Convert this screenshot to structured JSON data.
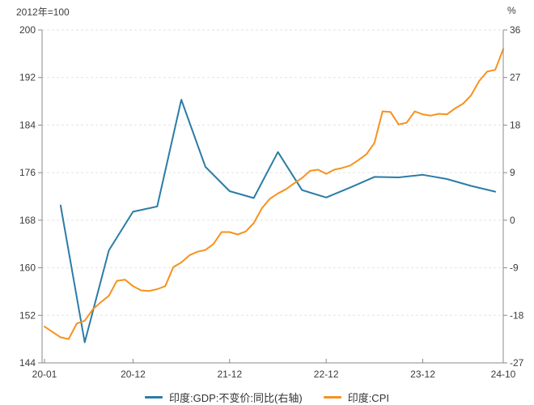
{
  "chart_data": {
    "type": "line",
    "title": "",
    "grid": "horizontal-dashed",
    "legend_position": "bottom",
    "colors": {
      "gdp_line": "#2b7ca7",
      "cpi_line": "#f6921e",
      "gridline": "#e2e2e2",
      "axis": "#8a8a8a",
      "tick_text": "#3c3c3c"
    },
    "left_axis": {
      "title": "2012年=100",
      "min": 144,
      "max": 200,
      "step": 8,
      "tick_labels": [
        "144",
        "152",
        "160",
        "168",
        "176",
        "184",
        "192",
        "200"
      ]
    },
    "right_axis": {
      "title": "%",
      "min": -27,
      "max": 36,
      "step": 9,
      "tick_labels": [
        "-27",
        "-18",
        "-9",
        "0",
        "9",
        "18",
        "27",
        "36"
      ]
    },
    "x_axis": {
      "tick_labels": [
        "20-01",
        "20-12",
        "21-12",
        "22-12",
        "23-12",
        "24-10"
      ]
    },
    "months": [
      "20-01",
      "20-02",
      "20-03",
      "20-04",
      "20-05",
      "20-06",
      "20-07",
      "20-08",
      "20-09",
      "20-10",
      "20-11",
      "20-12",
      "21-01",
      "21-02",
      "21-03",
      "21-04",
      "21-05",
      "21-06",
      "21-07",
      "21-08",
      "21-09",
      "21-10",
      "21-11",
      "21-12",
      "22-01",
      "22-02",
      "22-03",
      "22-04",
      "22-05",
      "22-06",
      "22-07",
      "22-08",
      "22-09",
      "22-10",
      "22-11",
      "22-12",
      "23-01",
      "23-02",
      "23-03",
      "23-04",
      "23-05",
      "23-06",
      "23-07",
      "23-08",
      "23-09",
      "23-10",
      "23-11",
      "23-12",
      "24-01",
      "24-02",
      "24-03",
      "24-04",
      "24-05",
      "24-06",
      "24-07",
      "24-08",
      "24-09",
      "24-10"
    ],
    "series": [
      {
        "key": "gdp",
        "name": "印度:GDP:不变价:同比(右轴)",
        "axis": "right",
        "color": "#2b7ca7",
        "months": [
          "20-03",
          "20-06",
          "20-09",
          "20-12",
          "21-03",
          "21-06",
          "21-09",
          "21-12",
          "22-03",
          "22-06",
          "22-09",
          "22-12",
          "23-03",
          "23-06",
          "23-09",
          "23-12",
          "24-03",
          "24-06",
          "24-09"
        ],
        "values": [
          2.8,
          -23.1,
          -5.7,
          1.6,
          2.6,
          22.8,
          10.1,
          5.5,
          4.2,
          12.9,
          5.7,
          4.3,
          6.2,
          8.2,
          8.1,
          8.6,
          7.8,
          6.5,
          5.4
        ]
      },
      {
        "key": "cpi",
        "name": "印度:CPI",
        "axis": "left",
        "color": "#f6921e",
        "months": [
          "20-01",
          "20-02",
          "20-03",
          "20-04",
          "20-05",
          "20-06",
          "20-07",
          "20-08",
          "20-09",
          "20-10",
          "20-11",
          "20-12",
          "21-01",
          "21-02",
          "21-03",
          "21-04",
          "21-05",
          "21-06",
          "21-07",
          "21-08",
          "21-09",
          "21-10",
          "21-11",
          "21-12",
          "22-01",
          "22-02",
          "22-03",
          "22-04",
          "22-05",
          "22-06",
          "22-07",
          "22-08",
          "22-09",
          "22-10",
          "22-11",
          "22-12",
          "23-01",
          "23-02",
          "23-03",
          "23-04",
          "23-05",
          "23-06",
          "23-07",
          "23-08",
          "23-09",
          "23-10",
          "23-11",
          "23-12",
          "24-01",
          "24-02",
          "24-03",
          "24-04",
          "24-05",
          "24-06",
          "24-07",
          "24-08",
          "24-09",
          "24-10"
        ],
        "values": [
          150.1,
          149.2,
          148.3,
          148.0,
          150.6,
          151.1,
          153.0,
          154.2,
          155.3,
          157.8,
          158.0,
          156.9,
          156.2,
          156.1,
          156.4,
          156.9,
          160.1,
          160.9,
          162.1,
          162.7,
          163.0,
          164.0,
          166.0,
          166.0,
          165.6,
          166.1,
          167.5,
          170.0,
          171.6,
          172.5,
          173.2,
          174.2,
          175.1,
          176.3,
          176.5,
          175.8,
          176.5,
          176.8,
          177.2,
          178.1,
          179.1,
          181.0,
          186.3,
          186.2,
          184.1,
          184.4,
          186.3,
          185.8,
          185.6,
          185.9,
          185.8,
          186.8,
          187.6,
          189.0,
          191.4,
          193.0,
          193.3,
          196.8
        ]
      }
    ]
  }
}
